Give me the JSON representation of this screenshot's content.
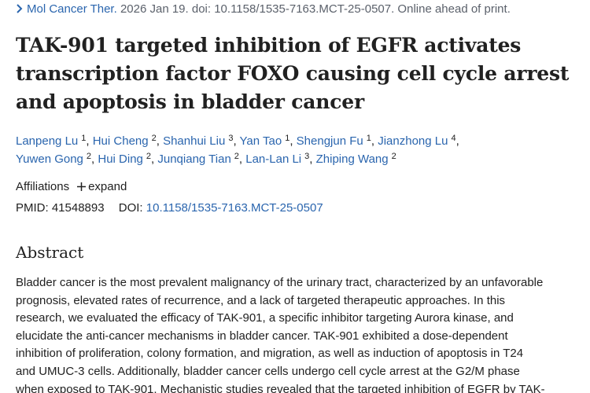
{
  "citation": {
    "journal": "Mol Cancer Ther.",
    "details": "2026 Jan 19. doi: 10.1158/1535-7163.MCT-25-0507. Online ahead of print."
  },
  "title_lines": [
    "TAK-901 targeted inhibition of EGFR activates",
    "transcription factor FOXO causing cell cycle arrest",
    "and apoptosis in bladder cancer"
  ],
  "author_separator": ",",
  "authors": [
    [
      {
        "name": "Lanpeng Lu",
        "aff": "1"
      },
      {
        "name": "Hui Cheng",
        "aff": "2"
      },
      {
        "name": "Shanhui Liu",
        "aff": "3"
      },
      {
        "name": "Yan Tao",
        "aff": "1"
      },
      {
        "name": "Shengjun Fu",
        "aff": "1"
      },
      {
        "name": "Jianzhong Lu",
        "aff": "4"
      }
    ],
    [
      {
        "name": "Yuwen Gong",
        "aff": "2"
      },
      {
        "name": "Hui Ding",
        "aff": "2"
      },
      {
        "name": "Junqiang Tian",
        "aff": "2"
      },
      {
        "name": "Lan-Lan Li",
        "aff": "3"
      },
      {
        "name": "Zhiping Wang",
        "aff": "2"
      }
    ]
  ],
  "affiliations": {
    "label": "Affiliations",
    "expand": "expand"
  },
  "ids": {
    "pmid_label": "PMID:",
    "pmid": "41548893",
    "doi_label": "DOI:",
    "doi": "10.1158/1535-7163.MCT-25-0507"
  },
  "abstract": {
    "heading": "Abstract",
    "lines": [
      "Bladder cancer is the most prevalent malignancy of the urinary tract, characterized by an unfavorable",
      "prognosis, elevated rates of recurrence, and a lack of targeted therapeutic approaches. In this",
      "research, we evaluated the efficacy of TAK-901, a specific inhibitor targeting Aurora kinase, and",
      "elucidate the anti-cancer mechanisms in bladder cancer. TAK-901 exhibited a dose-dependent",
      "inhibition of proliferation, colony formation, and migration, as well as induction of apoptosis in T24",
      "and UMUC-3 cells. Additionally, bladder cancer cells undergo cell cycle arrest at the G2/M phase",
      "when exposed to TAK-901. Mechanistic studies revealed that the targeted inhibition of EGFR by TAK-"
    ]
  }
}
